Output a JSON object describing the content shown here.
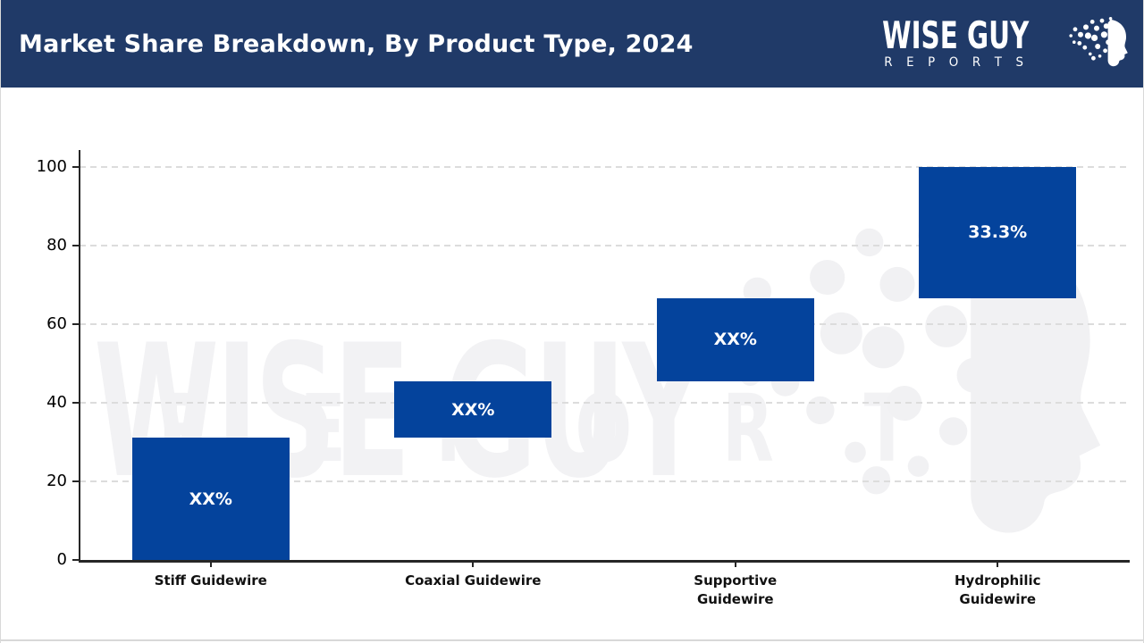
{
  "header": {
    "title": "Market Share Breakdown, By Product Type, 2024",
    "background_color": "#203a68",
    "brand": {
      "name": "WISE GUY",
      "subtitle": "R E P O R T S"
    }
  },
  "watermark": {
    "line1": "WISE GUY",
    "line2": "R E P O R T S"
  },
  "chart_data": {
    "type": "bar",
    "subtype": "floating-waterfall",
    "title": "Market Share Breakdown, By Product Type, 2024",
    "categories": [
      "Stiff Guidewire",
      "Coaxial Guidewire",
      "Supportive Guidewire",
      "Hydrophilic Guidewire"
    ],
    "segments": [
      {
        "category": "Stiff Guidewire",
        "category_lines": [
          "Stiff Guidewire"
        ],
        "start": 0,
        "end": 31.1,
        "label": "XX%"
      },
      {
        "category": "Coaxial Guidewire",
        "category_lines": [
          "Coaxial Guidewire"
        ],
        "start": 31.1,
        "end": 45.4,
        "label": "XX%"
      },
      {
        "category": "Supportive Guidewire",
        "category_lines": [
          "Supportive",
          "Guidewire"
        ],
        "start": 45.4,
        "end": 66.7,
        "label": "XX%"
      },
      {
        "category": "Hydrophilic Guidewire",
        "category_lines": [
          "Hydrophilic",
          "Guidewire"
        ],
        "start": 66.7,
        "end": 100,
        "label": "33.3%"
      }
    ],
    "yticks": [
      0,
      20,
      40,
      60,
      80,
      100
    ],
    "ylim": [
      0,
      104
    ],
    "grid": "horizontal-dashed",
    "legend": "none",
    "bar_color": "#04439c",
    "bar_label_color": "#ffffff",
    "grid_color": "#dcdcdc",
    "axis_color": "#262626",
    "tick_label_color": "#000000"
  }
}
